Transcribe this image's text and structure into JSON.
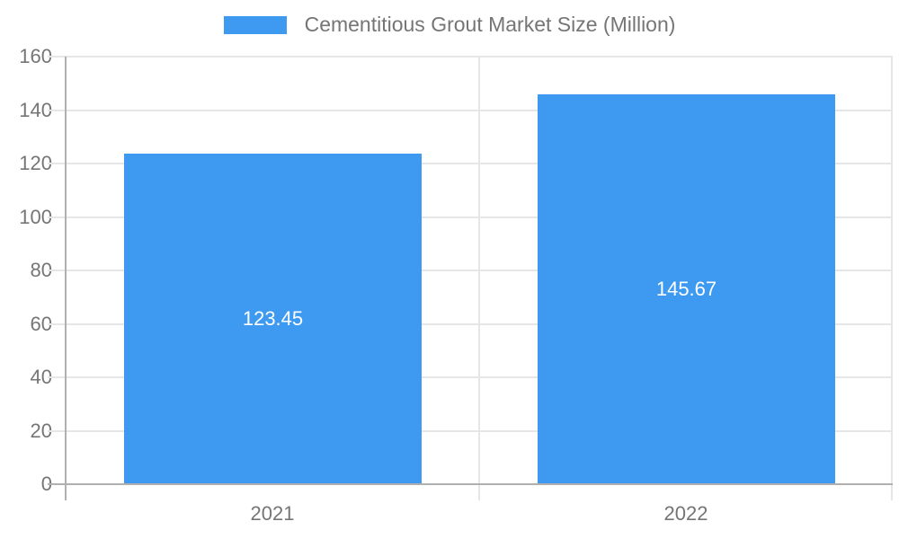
{
  "chart_data": {
    "type": "bar",
    "title": "Cementitious Grout Market Size (Million)",
    "categories": [
      "2021",
      "2022"
    ],
    "series": [
      {
        "name": "Cementitious Grout Market Size (Million)",
        "values": [
          123.45,
          145.67
        ]
      }
    ],
    "value_labels": [
      "123.45",
      "145.67"
    ],
    "xlabel": "",
    "ylabel": "",
    "ylim": [
      0,
      160
    ],
    "ytick_step": 20,
    "grid": true,
    "legend_position": "top",
    "colors": {
      "bar": "#3D9AF0",
      "grid": "#e6e6e6",
      "axis": "#b0b0b0",
      "text": "#757575",
      "value_label": "#ffffff",
      "background": "#ffffff"
    }
  }
}
